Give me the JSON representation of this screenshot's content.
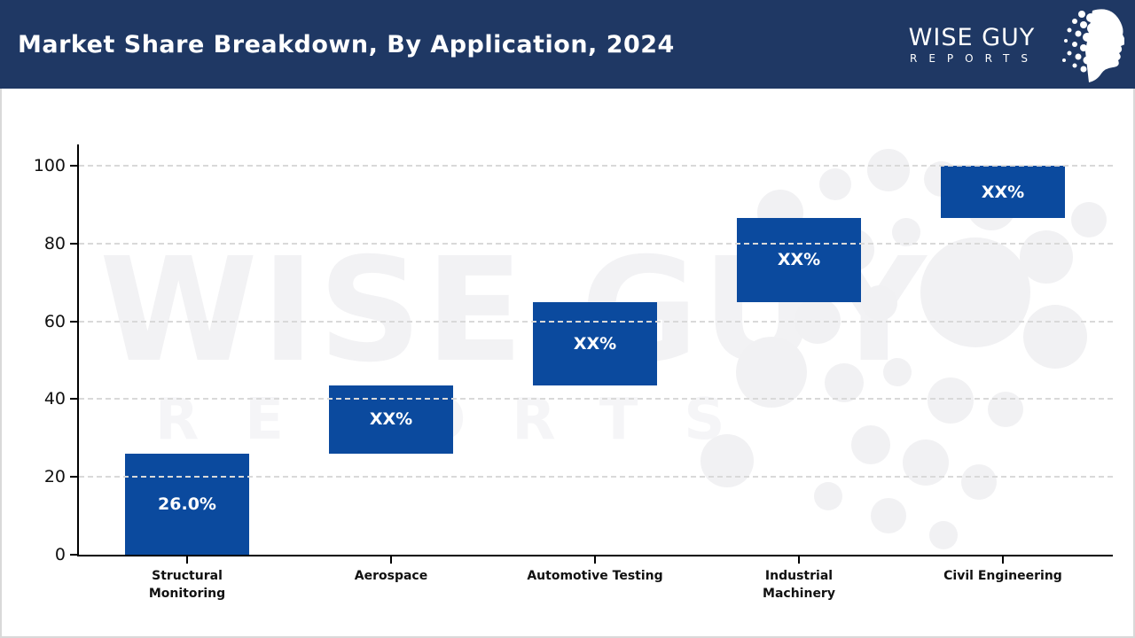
{
  "header": {
    "title": "Market Share Breakdown, By Application, 2024",
    "bg_color": "#1f3864",
    "logo": {
      "name": "WISE GUY",
      "sub": "REPORTS"
    }
  },
  "watermark": {
    "line1": "WISE GUY",
    "line2": "REPORTS"
  },
  "chart_data": {
    "type": "bar",
    "subtype": "waterfall",
    "title": "Market Share Breakdown, By Application, 2024",
    "categories": [
      "Structural Monitoring",
      "Aerospace",
      "Automotive Testing",
      "Industrial Machinery",
      "Civil Engineering"
    ],
    "tick_label_lines": [
      [
        "Structural",
        "Monitoring"
      ],
      [
        "Aerospace"
      ],
      [
        "Automotive Testing"
      ],
      [
        "Industrial",
        "Machinery"
      ],
      [
        "Civil Engineering"
      ]
    ],
    "segments": [
      {
        "category": "Structural Monitoring",
        "start": 0,
        "end": 26,
        "label": "26.0%"
      },
      {
        "category": "Aerospace",
        "start": 26,
        "end": 43.5,
        "label": "XX%"
      },
      {
        "category": "Automotive Testing",
        "start": 43.5,
        "end": 65,
        "label": "XX%"
      },
      {
        "category": "Industrial Machinery",
        "start": 65,
        "end": 86.5,
        "label": "XX%"
      },
      {
        "category": "Civil Engineering",
        "start": 86.5,
        "end": 100,
        "label": "XX%"
      }
    ],
    "yticks": [
      0,
      20,
      40,
      60,
      80,
      100
    ],
    "ylim": [
      0,
      105.5
    ],
    "grid": true,
    "grid_style": "dashed",
    "gridline_color": "#d9d9d9",
    "bar_color": "#0b4a9e",
    "bar_label_color": "#ffffff",
    "axis_color": "#000000",
    "legend": "none",
    "xlabel": "",
    "ylabel": ""
  }
}
